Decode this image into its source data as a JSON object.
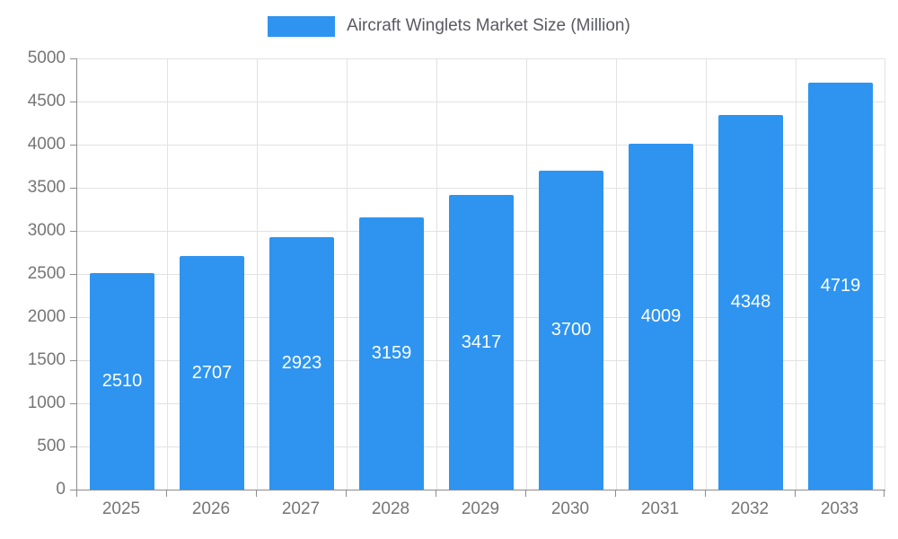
{
  "chart_data": {
    "type": "bar",
    "title": "Aircraft Winglets Market Size (Million)",
    "categories": [
      "2025",
      "2026",
      "2027",
      "2028",
      "2029",
      "2030",
      "2031",
      "2032",
      "2033"
    ],
    "values": [
      2510,
      2707,
      2923,
      3159,
      3417,
      3700,
      4009,
      4348,
      4719
    ],
    "xlabel": "",
    "ylabel": "",
    "ylim": [
      0,
      5000
    ],
    "ytick_step": 500,
    "grid": true,
    "legend_position": "top",
    "bar_color": "#2e94f0",
    "bar_label_color": "#ffffff"
  },
  "colors": {
    "axis": "#8c8c8c",
    "grid": "#e2e2e2",
    "tick_text": "#757575",
    "legend_text": "#595962",
    "background": "#ffffff"
  }
}
